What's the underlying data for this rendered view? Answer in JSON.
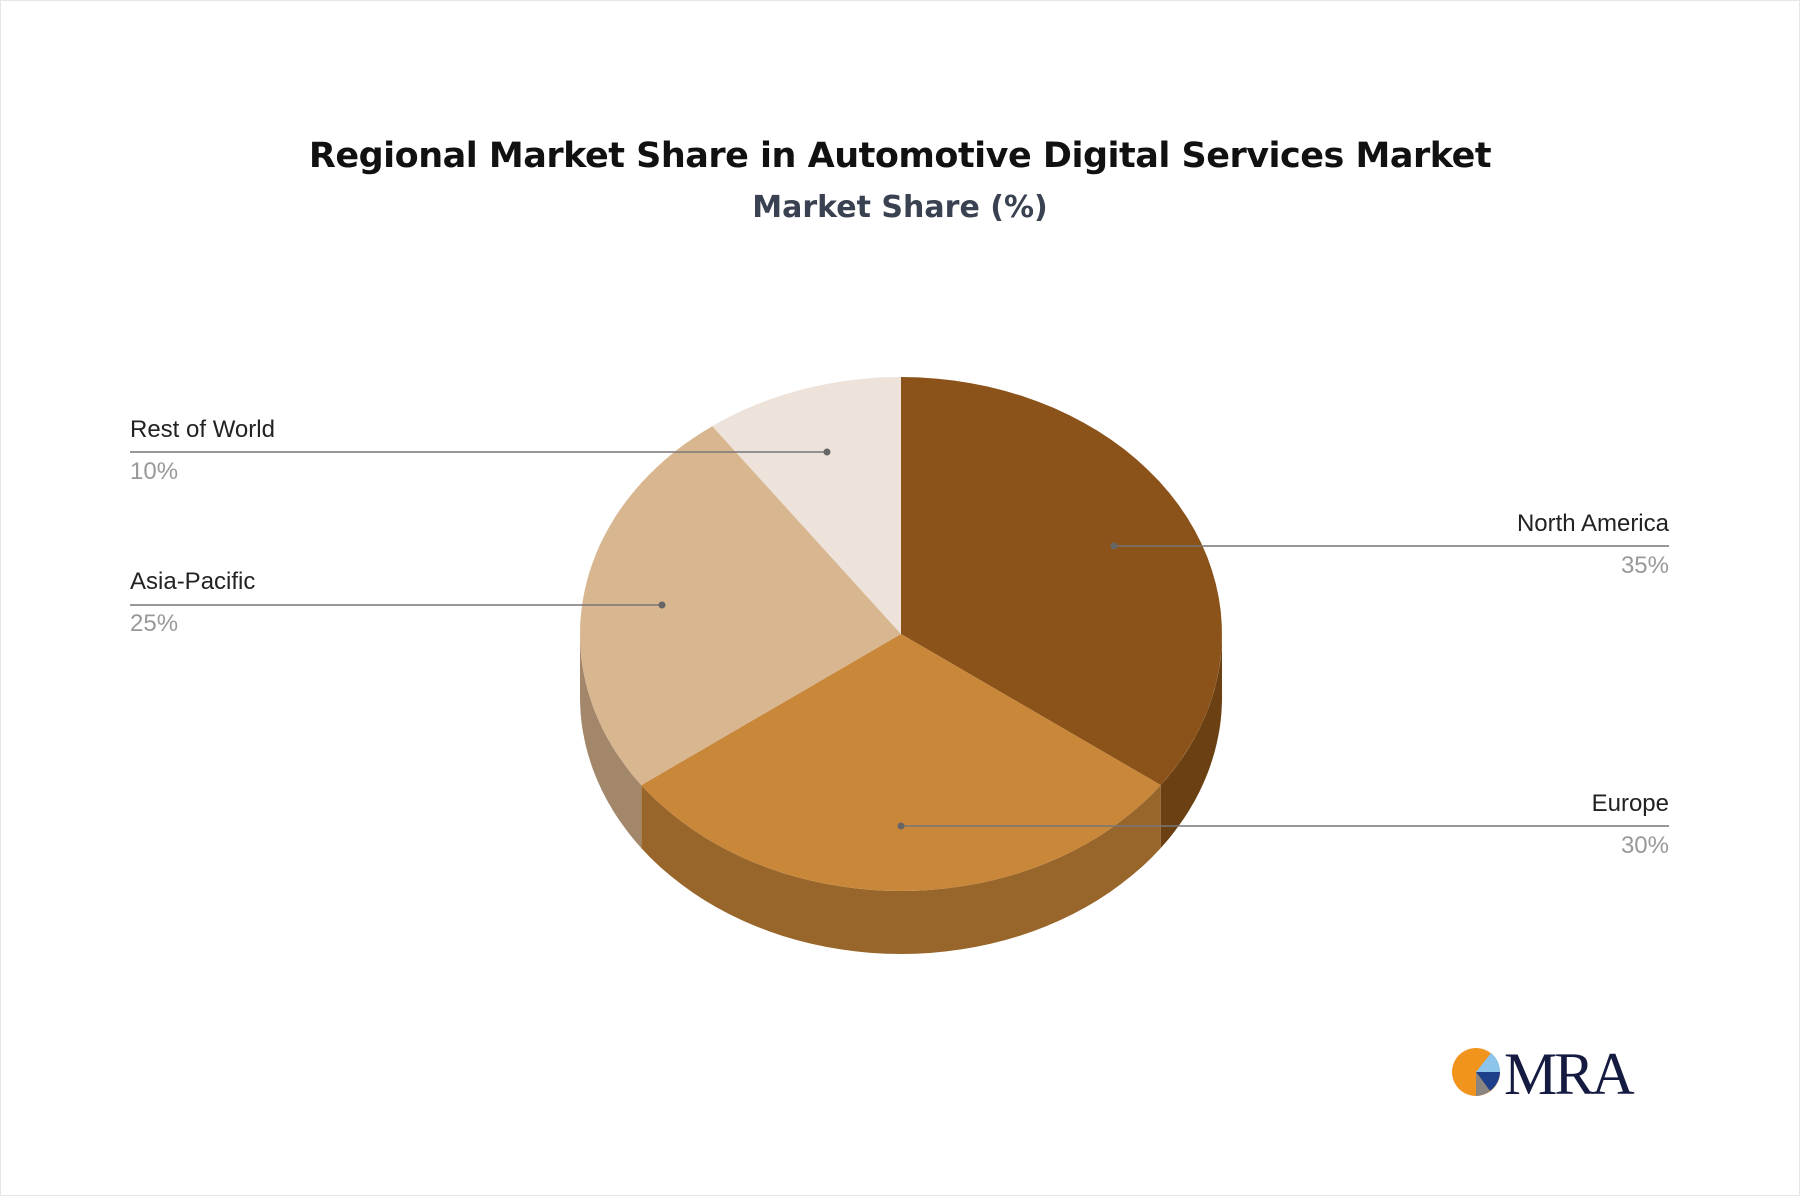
{
  "chart_data": {
    "type": "pie",
    "style": "3d",
    "title": "Regional Market Share in Automotive Digital Services Market",
    "subtitle": "Market Share (%)",
    "categories": [
      "North America",
      "Europe",
      "Asia-Pacific",
      "Rest of World"
    ],
    "values": [
      35,
      30,
      25,
      10
    ],
    "labels": [
      "35%",
      "30%",
      "25%",
      "10%"
    ],
    "colors": [
      "#8B5319",
      "#C9873A",
      "#D8B690",
      "#EEE3DA"
    ],
    "side_colors": [
      "#6B4012",
      "#98652A",
      "#A3876A",
      "#C9BEB5"
    ]
  },
  "logo": {
    "text": "MRA"
  }
}
